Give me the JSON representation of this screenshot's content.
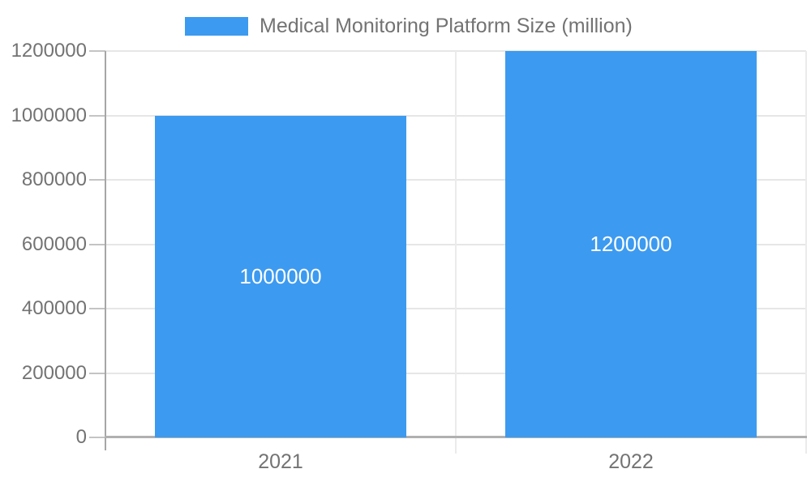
{
  "chart_data": {
    "type": "bar",
    "title": "",
    "legend_position": "top-center",
    "categories": [
      "2021",
      "2022"
    ],
    "series": [
      {
        "name": "Medical Monitoring Platform Size (million)",
        "values": [
          1000000,
          1200000
        ],
        "data_labels": [
          "1000000",
          "1200000"
        ],
        "color": "#3C9AF0"
      }
    ],
    "xlabel": "",
    "ylabel": "",
    "ylim": [
      0,
      1200000
    ],
    "y_tick_values": [
      0,
      200000,
      400000,
      600000,
      800000,
      1000000,
      1200000
    ],
    "y_tick_labels": [
      "0",
      "200000",
      "400000",
      "600000",
      "800000",
      "1000000",
      "1200000"
    ],
    "grid": true,
    "colors": {
      "bar": "#3C9AF0",
      "grid_line": "#e6e6e6",
      "band_line": "#ebebeb",
      "axis_line": "#a6a6a6",
      "baseline": "#b0b0b0",
      "tick": "#c4c4c4",
      "label_text": "#737373",
      "bar_label_text": "#ffffff",
      "background": "#ffffff"
    }
  }
}
